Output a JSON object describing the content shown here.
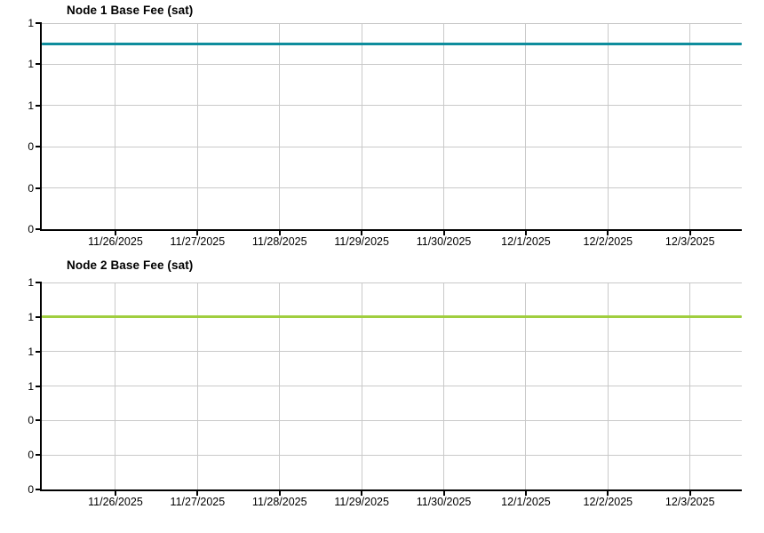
{
  "page": {
    "background_color": "#ffffff",
    "grid_color": "#c9c9c9",
    "axis_color": "#000000",
    "text_color": "#000000"
  },
  "chart_data": [
    {
      "type": "line",
      "title": "Node 1 Base Fee (sat)",
      "x": [
        "11/26/2025",
        "11/27/2025",
        "11/28/2025",
        "11/29/2025",
        "11/30/2025",
        "12/1/2025",
        "12/2/2025",
        "12/3/2025"
      ],
      "series": [
        {
          "name": "Node 1 Base Fee (sat)",
          "values": [
            0.9,
            0.9,
            0.9,
            0.9,
            0.9,
            0.9,
            0.9,
            0.9
          ],
          "color": "#0e8d9d"
        }
      ],
      "xlabel": "",
      "ylabel": "",
      "ylim": [
        0,
        1.0
      ],
      "y_tick_step": 0.2,
      "y_tick_labels_top_to_bottom": [
        "1",
        "1",
        "1",
        "0",
        "0",
        "0"
      ],
      "grid": true,
      "legend_position": "none"
    },
    {
      "type": "line",
      "title": "Node 2 Base Fee (sat)",
      "x": [
        "11/26/2025",
        "11/27/2025",
        "11/28/2025",
        "11/29/2025",
        "11/30/2025",
        "12/1/2025",
        "12/2/2025",
        "12/3/2025"
      ],
      "series": [
        {
          "name": "Node 2 Base Fee (sat)",
          "values": [
            1,
            1,
            1,
            1,
            1,
            1,
            1,
            1
          ],
          "color": "#a0ce3f"
        }
      ],
      "xlabel": "",
      "ylabel": "",
      "ylim": [
        0,
        1.2
      ],
      "y_tick_step": 0.2,
      "y_tick_labels_top_to_bottom": [
        "1",
        "1",
        "1",
        "1",
        "0",
        "0",
        "0"
      ],
      "grid": true,
      "legend_position": "none"
    }
  ]
}
